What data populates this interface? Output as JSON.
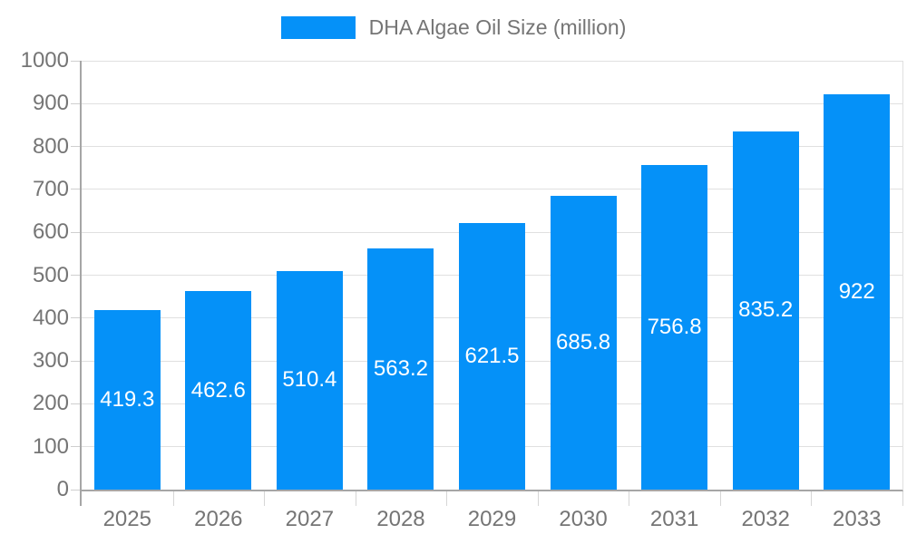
{
  "legend": {
    "label": "DHA Algae Oil Size (million)",
    "swatch_color": "#0591f8"
  },
  "chart_data": {
    "type": "bar",
    "title": "DHA Algae Oil Size (million)",
    "series": [
      {
        "name": "DHA Algae Oil Size (million)",
        "values": [
          419.3,
          462.6,
          510.4,
          563.2,
          621.5,
          685.8,
          756.8,
          835.2,
          922
        ]
      }
    ],
    "categories": [
      "2025",
      "2026",
      "2027",
      "2028",
      "2029",
      "2030",
      "2031",
      "2032",
      "2033"
    ],
    "value_labels": [
      "419.3",
      "462.6",
      "510.4",
      "563.2",
      "621.5",
      "685.8",
      "756.8",
      "835.2",
      "922"
    ],
    "xlabel": "",
    "ylabel": "",
    "ylim": [
      0,
      1000
    ],
    "yticks": [
      0,
      100,
      200,
      300,
      400,
      500,
      600,
      700,
      800,
      900,
      1000
    ],
    "grid": true,
    "legend_position": "top-center",
    "bar_color": "#0591f8",
    "value_label_color": "#ffffff",
    "axis_text_color": "#757575",
    "gridline_color": "#e0e0e0",
    "axis_line_color": "#a6a6a6"
  }
}
